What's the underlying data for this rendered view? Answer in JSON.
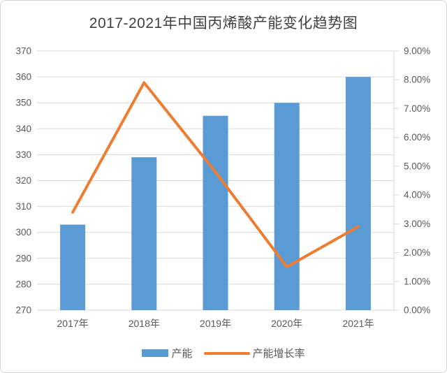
{
  "page": {
    "title": "2017-2021年中国丙烯酸产能变化趋势图"
  },
  "chart_data": {
    "type": "combo-bar-line",
    "title": "2017-2021年中国丙烯酸产能变化趋势图",
    "categories": [
      "2017年",
      "2018年",
      "2019年",
      "2020年",
      "2021年"
    ],
    "series": [
      {
        "name": "产能",
        "type": "bar",
        "axis": "left",
        "values": [
          303,
          329,
          345,
          350,
          360
        ],
        "color": "#5B9BD5"
      },
      {
        "name": "产能增长率",
        "type": "line",
        "axis": "right",
        "values": [
          3.4,
          7.9,
          4.8,
          1.5,
          2.9
        ],
        "unit": "%",
        "color": "#ED7D31"
      }
    ],
    "left_axis": {
      "min": 270,
      "max": 370,
      "step": 10,
      "ticks": [
        "270",
        "280",
        "290",
        "300",
        "310",
        "320",
        "330",
        "340",
        "350",
        "360",
        "370"
      ]
    },
    "right_axis": {
      "min": 0,
      "max": 9,
      "step": 1,
      "ticks": [
        "0.00%",
        "1.00%",
        "2.00%",
        "3.00%",
        "4.00%",
        "5.00%",
        "6.00%",
        "7.00%",
        "8.00%",
        "9.00%"
      ]
    },
    "grid": true,
    "legend_position": "bottom",
    "legend": [
      "产能",
      "产能增长率"
    ]
  },
  "colors": {
    "grid": "#D9D9D9",
    "axis_text": "#595959",
    "title_text": "#404040",
    "bar": "#5B9BD5",
    "line": "#ED7D31",
    "background": "#FFFFFF",
    "border": "#D4D4D4"
  }
}
